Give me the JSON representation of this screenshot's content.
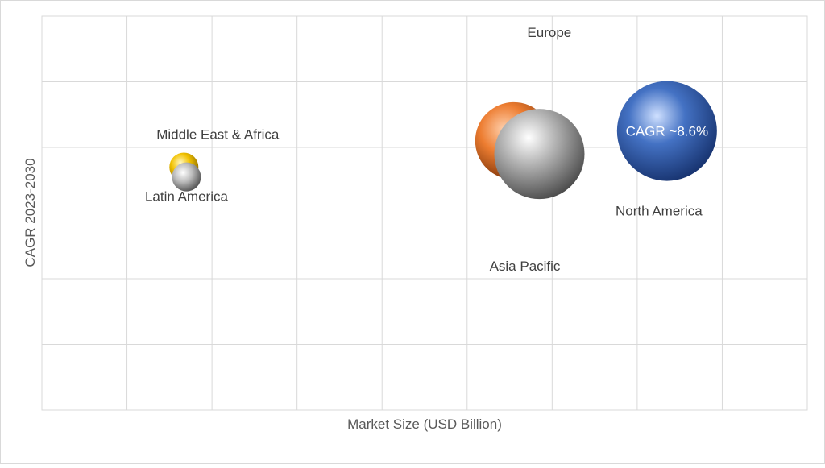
{
  "chart_data": {
    "type": "scatter",
    "subtype": "bubble",
    "title": "",
    "xlabel": "Market Size (USD Billion)",
    "ylabel": "CAGR 2023-2030",
    "xlim": [
      0,
      9
    ],
    "ylim": [
      0,
      6
    ],
    "grid": true,
    "tick_labels_shown": false,
    "legend": "none",
    "series": [
      {
        "name": "Middle East & Africa",
        "x": 1.67,
        "y": 3.7,
        "size": 0.45,
        "color": "#f2c200"
      },
      {
        "name": "Latin America",
        "x": 1.7,
        "y": 3.55,
        "size": 0.45,
        "color": "#9e9e9e"
      },
      {
        "name": "Europe",
        "x": 5.55,
        "y": 4.1,
        "size": 1.2,
        "color": "#ed7d31"
      },
      {
        "name": "Asia Pacific",
        "x": 5.85,
        "y": 3.9,
        "size": 1.4,
        "color": "#a5a5a5"
      },
      {
        "name": "North America",
        "x": 7.35,
        "y": 4.25,
        "size": 1.55,
        "color": "#4472c4"
      }
    ],
    "annotations": [
      {
        "text": "CAGR ~8.6%",
        "attached_to": "North America"
      }
    ]
  }
}
